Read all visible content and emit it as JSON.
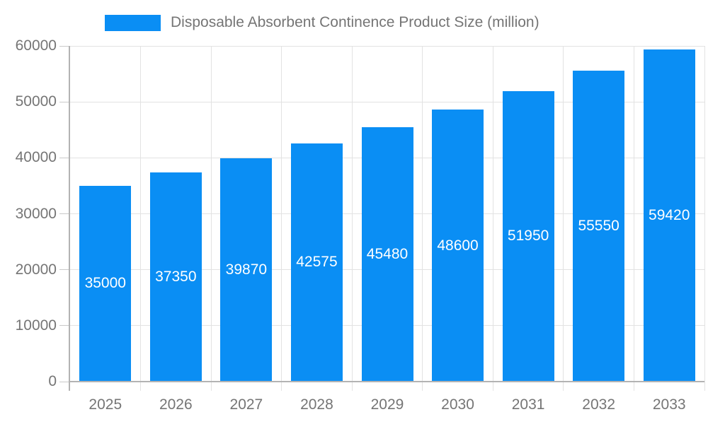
{
  "chart_data": {
    "type": "bar",
    "title": "Disposable Absorbent Continence Product Size (million)",
    "categories": [
      "2025",
      "2026",
      "2027",
      "2028",
      "2029",
      "2030",
      "2031",
      "2032",
      "2033"
    ],
    "series": [
      {
        "name": "Disposable Absorbent Continence Product Size (million)",
        "values": [
          35000,
          37350,
          39870,
          42575,
          45480,
          48600,
          51950,
          55550,
          59420
        ]
      }
    ],
    "xlabel": "",
    "ylabel": "",
    "ylim": [
      0,
      60000
    ],
    "ytick_step": 10000,
    "ytick_labels": [
      "0",
      "10000",
      "20000",
      "30000",
      "40000",
      "50000",
      "60000"
    ],
    "grid": true,
    "legend_position": "top",
    "value_labels": "inside-center",
    "colors": {
      "bar": "#0a8ef4",
      "value_label": "#ffffff",
      "axis_text": "#757575",
      "legend_text": "#757575",
      "gridline": "#e2e2e2",
      "axis_line": "#b3b3b3",
      "background": "#ffffff"
    }
  }
}
